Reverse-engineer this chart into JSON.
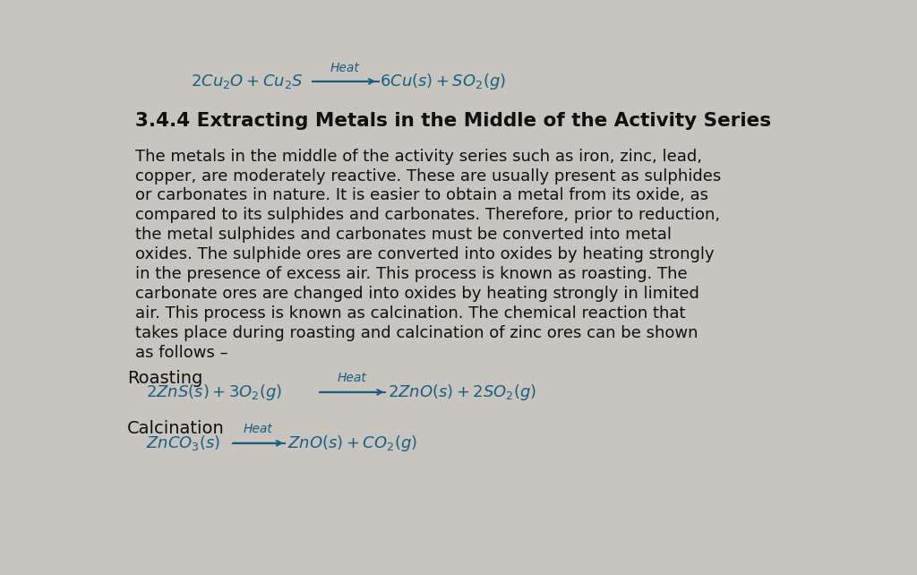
{
  "background_color": "#c8c4c0",
  "page_background": "#dedad6",
  "title": "3.4.4 Extracting Metals in the Middle of the Activity Series",
  "title_fontsize": 15.5,
  "body_text_lines": [
    "The metals in the middle of the activity series such as iron, zinc, lead,",
    "copper, are moderately reactive. These are usually present as sulphides",
    "or carbonates in nature. It is easier to obtain a metal from its oxide, as",
    "compared to its sulphides and carbonates. Therefore, prior to reduction,",
    "the metal sulphides and carbonates must be converted into metal",
    "oxides. The sulphide ores are converted into oxides by heating strongly",
    "in the presence of excess air. This process is known as roasting. The",
    "carbonate ores are changed into oxides by heating strongly in limited",
    "air. This process is known as calcination. The chemical reaction that",
    "takes place during roasting and calcination of zinc ores can be shown",
    "as follows –"
  ],
  "body_fontsize": 13.0,
  "eq_color": "#1a5f80",
  "eq_fontsize": 13.0,
  "heat_fontsize": 10.0,
  "label_fontsize": 14.0,
  "text_color": "#111111",
  "top_eq_left": "2Cu₂O + Cu₂S",
  "top_eq_right": "6Cu(s) + SO₂(g)",
  "roasting_label": "Roasting",
  "roasting_eq_left": "2ZnS(s) + 3O₂(g)",
  "roasting_eq_right": "2ZnO(s) + 2SO₂(g)",
  "calcination_label": "Calcination",
  "calcination_eq_left": "ZnCO₃(s)",
  "calcination_eq_right": "ZnO(s) + CO₂(g)"
}
